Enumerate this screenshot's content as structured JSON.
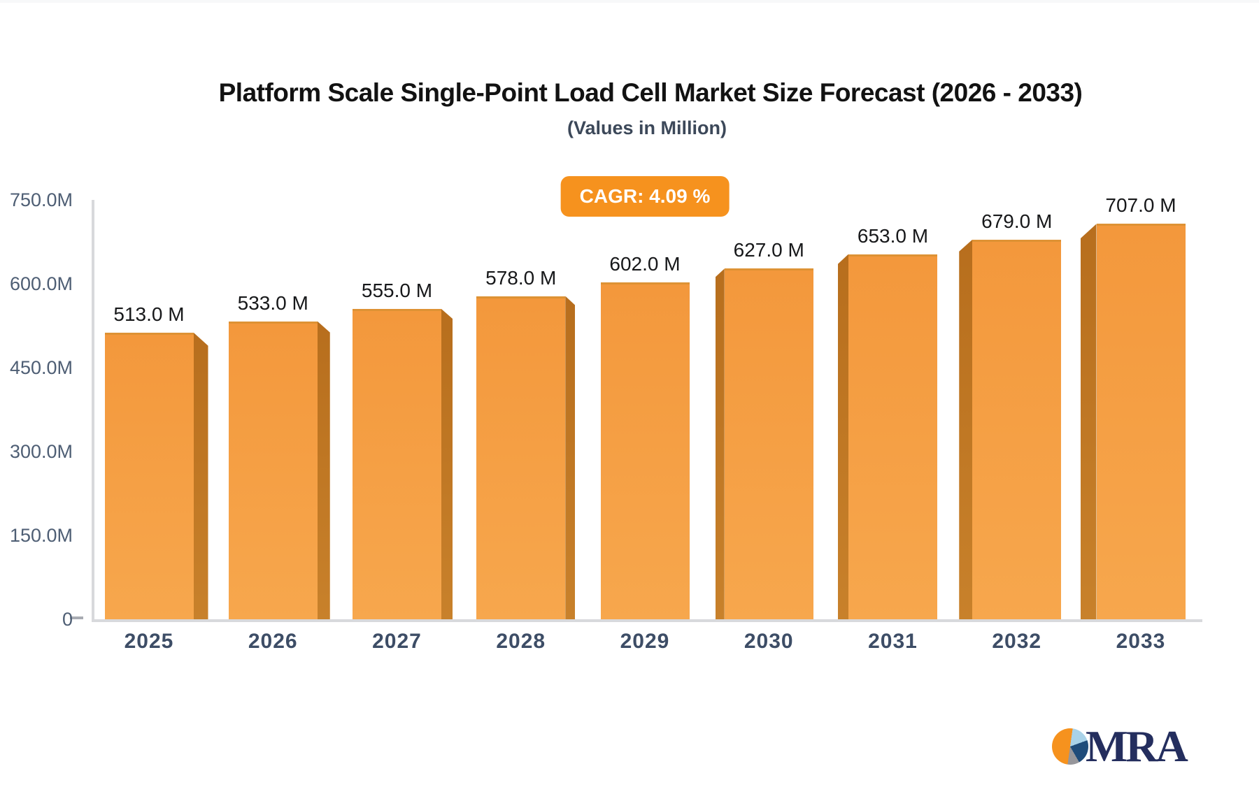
{
  "header": {
    "title": "Platform Scale Single-Point Load Cell Market Size Forecast (2026 - 2033)",
    "subtitle": "(Values in Million)"
  },
  "badge": {
    "label": "CAGR: 4.09 %"
  },
  "chart_data": {
    "type": "bar",
    "title": "Platform Scale Single-Point Load Cell Market Size Forecast (2026 - 2033)",
    "subtitle": "(Values in Million)",
    "cagr_label": "CAGR: 4.09 %",
    "categories": [
      "2025",
      "2026",
      "2027",
      "2028",
      "2029",
      "2030",
      "2031",
      "2032",
      "2033"
    ],
    "values": [
      513,
      533,
      555,
      578,
      602,
      627,
      653,
      679,
      707
    ],
    "value_labels": [
      "513.0 M",
      "533.0 M",
      "555.0 M",
      "578.0 M",
      "602.0 M",
      "627.0 M",
      "653.0 M",
      "679.0 M",
      "707.0 M"
    ],
    "unit": "M",
    "xlabel": "",
    "ylabel": "",
    "ylim": [
      0,
      750
    ],
    "yticks": [
      {
        "label": "750.0M",
        "value": 750
      },
      {
        "label": "600.0M",
        "value": 600
      },
      {
        "label": "450.0M",
        "value": 450
      },
      {
        "label": "300.0M",
        "value": 300
      },
      {
        "label": "150.0M",
        "value": 150
      },
      {
        "label": "0",
        "value": 0
      }
    ],
    "grid": false,
    "legend": false,
    "bar_style": "3d-bevel",
    "colors": {
      "bar_front_top": "#F3983C",
      "bar_front_bottom": "#F7A74D",
      "bar_side": "#BF7521",
      "badge_bg": "#F6921E",
      "axis_line": "#D8D9DC",
      "tick_text": "#4E5E74",
      "category_text": "#3D4D66",
      "value_text": "#17181A",
      "title_text": "#121212",
      "subtitle_text": "#3C4859"
    }
  },
  "logo": {
    "text": "MRA",
    "colors": {
      "orange": "#F6921E",
      "light_blue": "#A9D2E8",
      "navy_pie": "#1F4C7A",
      "gray": "#96969B",
      "text_navy": "#242E5E"
    }
  }
}
